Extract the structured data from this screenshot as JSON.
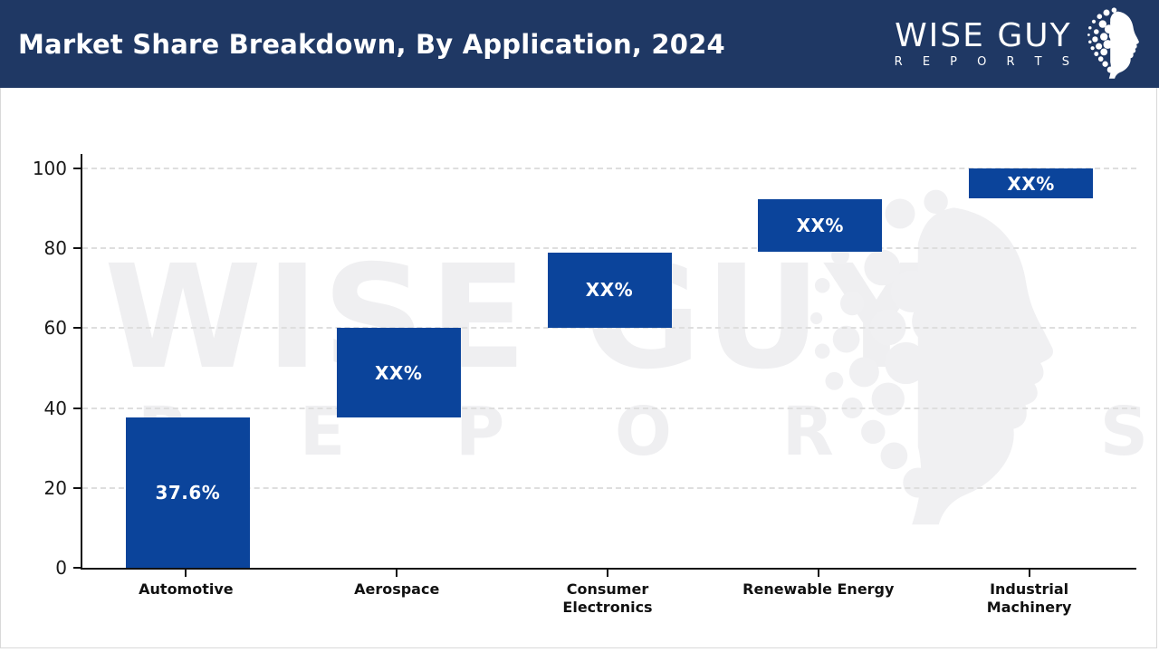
{
  "header": {
    "title": "Market Share Breakdown, By Application, 2024",
    "logo": {
      "line1": "WISE GUY",
      "line2": "R E P O R T S"
    }
  },
  "watermark": {
    "line1": "WISE GUY",
    "line2": "R E P O R T S"
  },
  "chart_data": {
    "type": "bar",
    "subtype": "waterfall",
    "title": "Market Share Breakdown, By Application, 2024",
    "xlabel": "",
    "ylabel": "",
    "ylim": [
      0,
      104
    ],
    "yticks": [
      0,
      20,
      40,
      60,
      80,
      100
    ],
    "grid": "horizontal-dashed",
    "legend": "none",
    "bar_color": "#0b449b",
    "categories": [
      "Automotive",
      "Aerospace",
      "Consumer Electronics",
      "Renewable Energy",
      "Industrial Machinery"
    ],
    "bars": [
      {
        "category": "Automotive",
        "category_lines": [
          "Automotive"
        ],
        "start": 0,
        "end": 37.6,
        "label": "37.6%"
      },
      {
        "category": "Aerospace",
        "category_lines": [
          "Aerospace"
        ],
        "start": 37.6,
        "end": 60.0,
        "label": "XX%"
      },
      {
        "category": "Consumer Electronics",
        "category_lines": [
          "Consumer",
          "Electronics"
        ],
        "start": 60.2,
        "end": 78.9,
        "label": "XX%"
      },
      {
        "category": "Renewable Energy",
        "category_lines": [
          "Renewable Energy"
        ],
        "start": 79.1,
        "end": 92.3,
        "label": "XX%"
      },
      {
        "category": "Industrial Machinery",
        "category_lines": [
          "Industrial",
          "Machinery"
        ],
        "start": 92.5,
        "end": 100,
        "label": "XX%"
      }
    ]
  },
  "colors": {
    "header_bg": "#1f3864",
    "bar": "#0b449b",
    "axis": "#111111",
    "gridline": "#dedede",
    "bar_label_text": "#ffffff",
    "watermark": "#efeff1",
    "frame_border": "#d9d9d9"
  }
}
